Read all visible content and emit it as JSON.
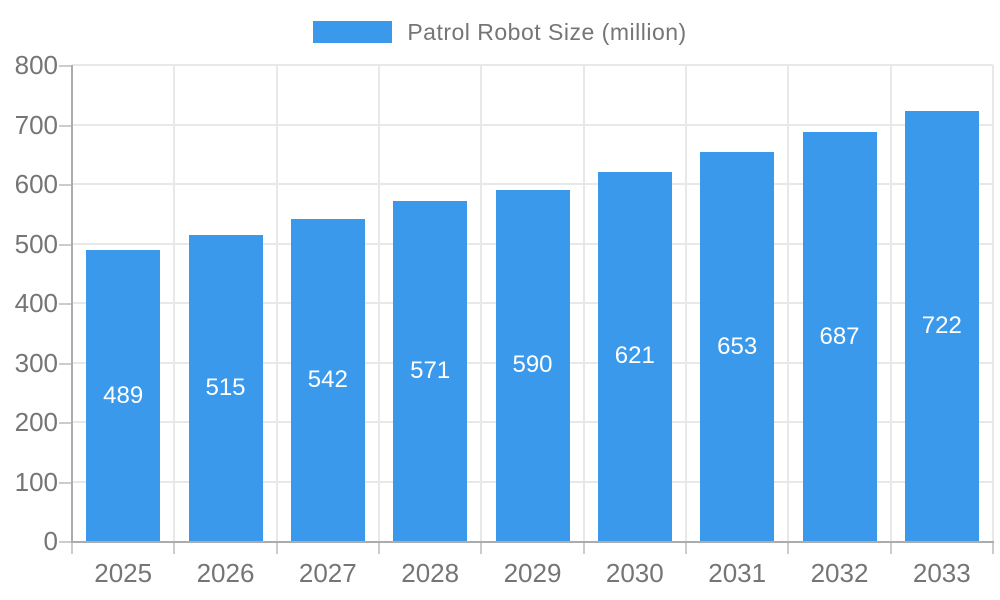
{
  "chart_data": {
    "type": "bar",
    "legend": {
      "label": "Patrol Robot Size (million)",
      "position": "top-center"
    },
    "categories": [
      "2025",
      "2026",
      "2027",
      "2028",
      "2029",
      "2030",
      "2031",
      "2032",
      "2033"
    ],
    "values": [
      489,
      515,
      542,
      571,
      590,
      621,
      653,
      687,
      722
    ],
    "value_labels": [
      "489",
      "515",
      "542",
      "571",
      "590",
      "621",
      "653",
      "687",
      "722"
    ],
    "y_tick_labels": [
      "0",
      "100",
      "200",
      "300",
      "400",
      "500",
      "600",
      "700",
      "800"
    ],
    "ylim": [
      0,
      800
    ],
    "y_tick_interval": 100,
    "grid": "horizontal-and-vertical",
    "value_label_placement": "inside-center-white",
    "colors": {
      "bar": "#3B99EC",
      "axis_line": "#ACACAC",
      "gridline": "#E8E8E8",
      "tick": "#CCCCCC",
      "axis_text": "#757575",
      "value_text": "#FFFFFF",
      "background": "#FFFFFF"
    }
  }
}
